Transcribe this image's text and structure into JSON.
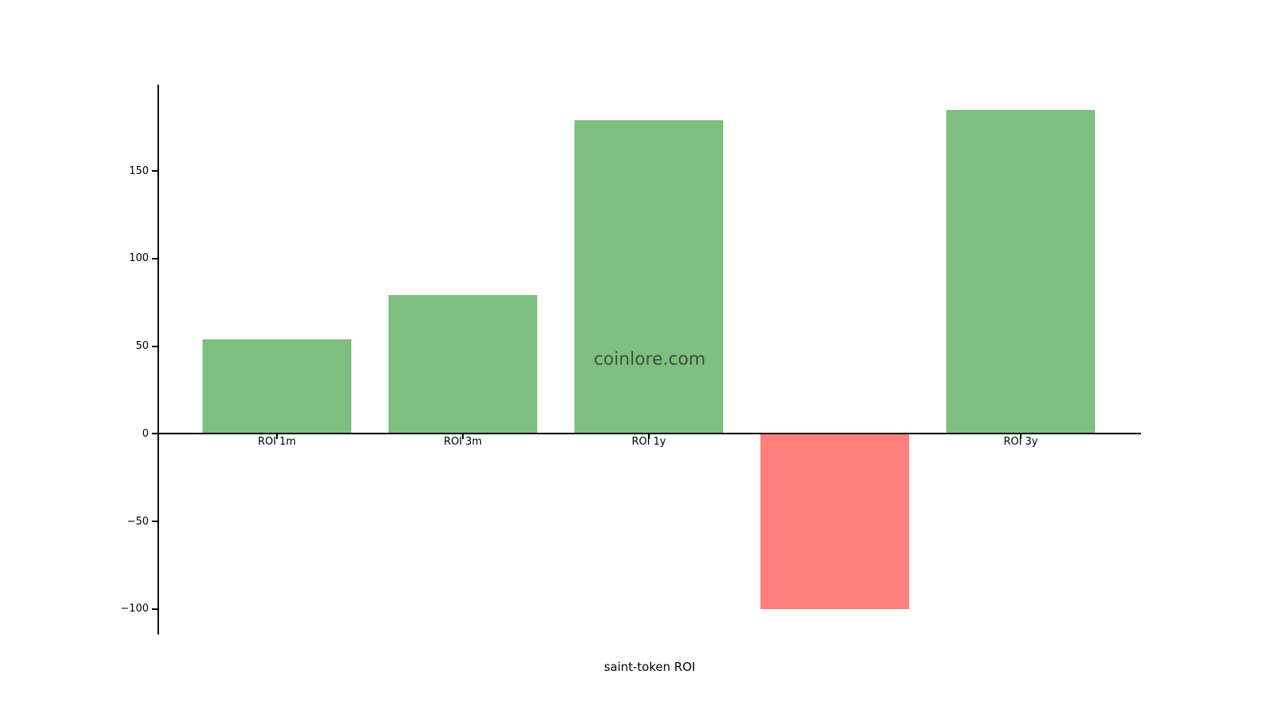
{
  "watermark": {
    "text": "coinlore.com",
    "color": "#3f5142"
  },
  "chart_data": {
    "type": "bar",
    "categories": [
      "ROI 1m",
      "ROI 3m",
      "ROI 1y",
      "",
      "ROI 3y"
    ],
    "values": [
      54,
      79,
      179,
      -100,
      185
    ],
    "bar_colors": [
      "#7fbf7f",
      "#7fbf7f",
      "#7fbf7f",
      "#ff7f7f",
      "#7fbf7f"
    ],
    "positive_color": "#7fbf7f",
    "negative_color": "#ff7f7f",
    "xlabel": "saint-token ROI",
    "ylabel": "",
    "ylim": [
      -114.25,
      199.25
    ],
    "yticks": [
      {
        "value": 150,
        "label": "150"
      },
      {
        "value": 100,
        "label": "100"
      },
      {
        "value": 50,
        "label": "50"
      },
      {
        "value": 0,
        "label": "0"
      },
      {
        "value": -50,
        "label": "−50"
      },
      {
        "value": -100,
        "label": "−100"
      }
    ],
    "grid": false,
    "legend": null,
    "axis_color": "#000000"
  }
}
